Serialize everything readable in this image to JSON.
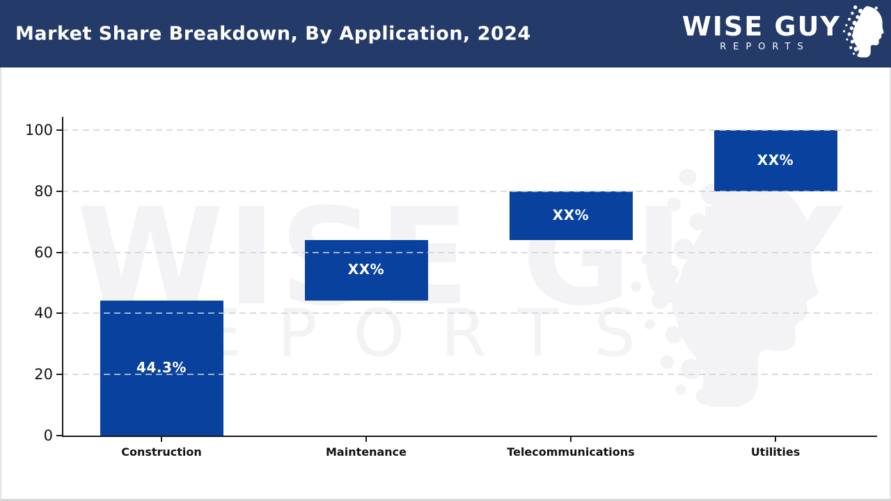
{
  "header": {
    "title": "Market Share Breakdown, By Application, 2024",
    "logo": {
      "line1": "WISE GUY",
      "line2": "REPORTS",
      "icon": "dotted-head-profile-icon"
    }
  },
  "watermark": {
    "line1": "WISE GUY",
    "line2": "REPORTS",
    "icon": "dotted-head-profile-icon"
  },
  "chart_data": {
    "type": "bar",
    "subtype": "waterfall",
    "title": "Market Share Breakdown, By Application, 2024",
    "xlabel": "",
    "ylabel": "",
    "categories": [
      "Construction",
      "Maintenance",
      "Telecommunications",
      "Utilities"
    ],
    "series": [
      {
        "name": "Market share (%)",
        "segments": [
          {
            "category": "Construction",
            "start": 0,
            "end": 44.3,
            "label": "44.3%"
          },
          {
            "category": "Maintenance",
            "start": 44.3,
            "end": 64.0,
            "label": "XX%"
          },
          {
            "category": "Telecommunications",
            "start": 64.0,
            "end": 80.0,
            "label": "XX%"
          },
          {
            "category": "Utilities",
            "start": 80.0,
            "end": 100.0,
            "label": "XX%"
          }
        ]
      }
    ],
    "ylim": [
      0,
      100
    ],
    "yticks": [
      0,
      20,
      40,
      60,
      80,
      100
    ],
    "grid": "horizontal-dashed",
    "legend": "none",
    "colors": {
      "bar": "#08419E",
      "bar_label": "#FFFFFF",
      "grid": "#CDD1D9",
      "axis": "#1A1A1A",
      "header_bg": "#243A68",
      "header_text": "#FFFFFF",
      "watermark": "#F3F3F6"
    }
  }
}
